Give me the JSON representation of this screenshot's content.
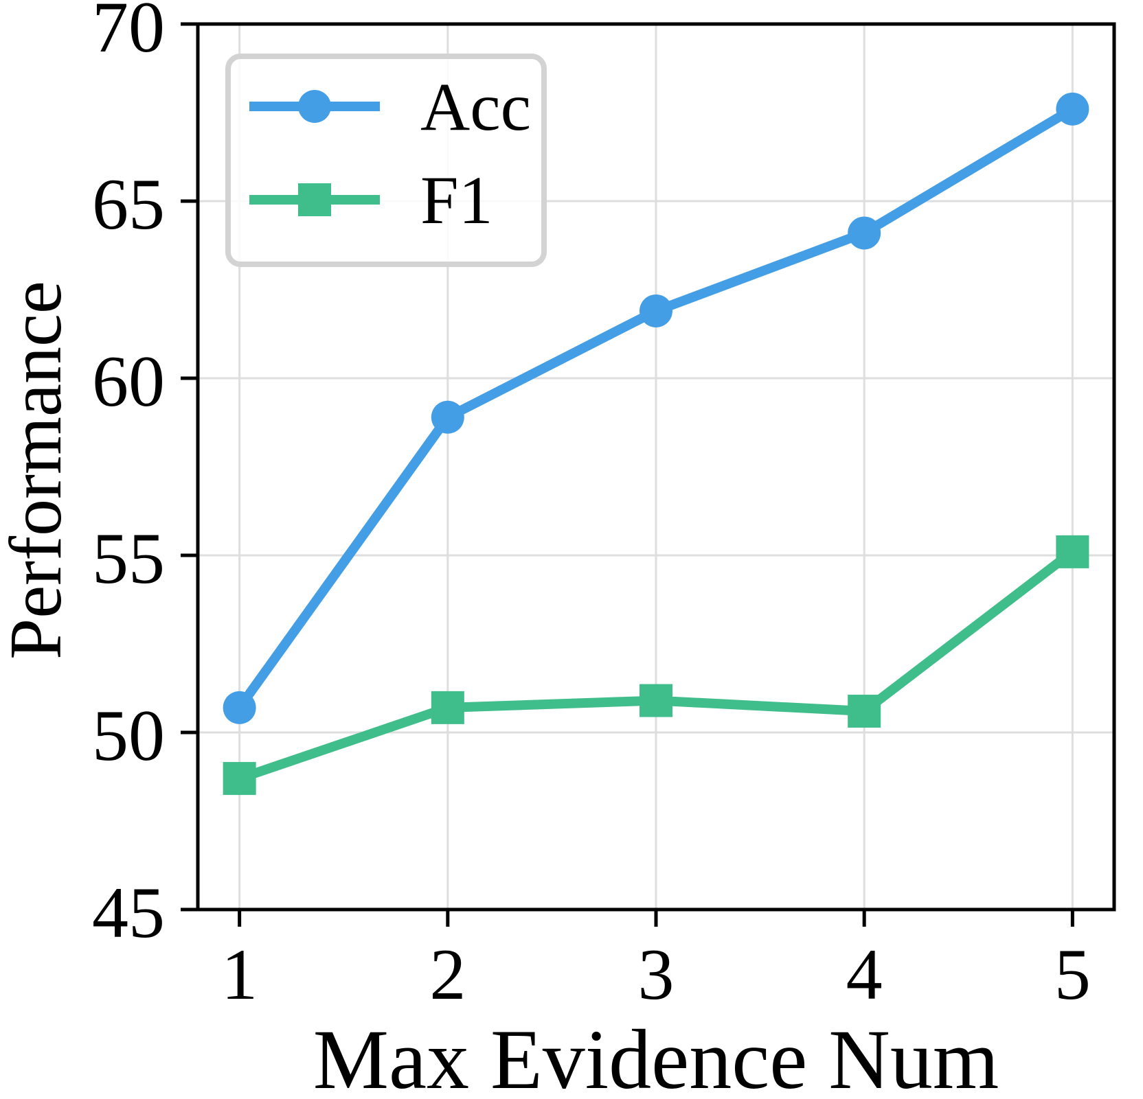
{
  "chart_data": {
    "type": "line",
    "title": "",
    "xlabel": "Max Evidence Num",
    "ylabel": "Performance",
    "categories": [
      1,
      2,
      3,
      4,
      5
    ],
    "xticks": [
      "1",
      "2",
      "3",
      "4",
      "5"
    ],
    "yticks": [
      "45",
      "50",
      "55",
      "60",
      "65",
      "70"
    ],
    "ytick_values": [
      45,
      50,
      55,
      60,
      65,
      70
    ],
    "xlim": [
      0.8,
      5.2
    ],
    "ylim": [
      45,
      70
    ],
    "grid": true,
    "legend_position": "upper-left",
    "series": [
      {
        "name": "Acc",
        "marker": "circle",
        "color": "#449ee6",
        "values": [
          50.7,
          58.9,
          61.9,
          64.1,
          67.6
        ]
      },
      {
        "name": "F1",
        "marker": "square",
        "color": "#3fbd8a",
        "values": [
          48.7,
          50.7,
          50.9,
          50.6,
          55.1
        ]
      }
    ],
    "colors": {
      "background": "#ffffff",
      "grid": "#dedede",
      "axis": "#000000",
      "text": "#000000",
      "legend_border": "#d3d3d3",
      "legend_fill": "#ffffff"
    }
  }
}
